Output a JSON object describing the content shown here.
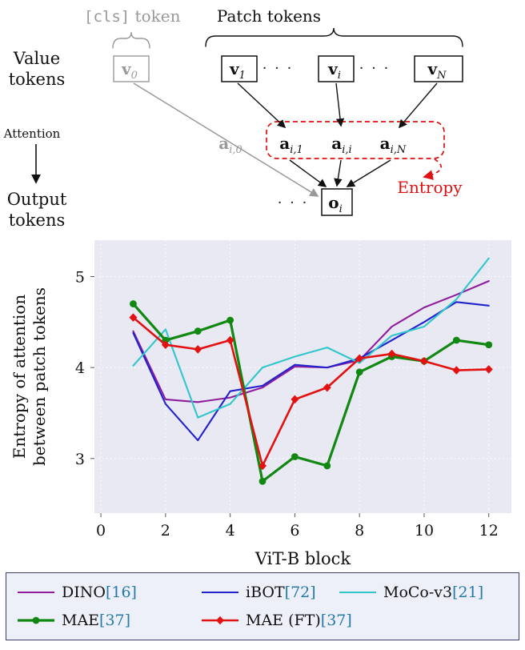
{
  "diagram": {
    "cls_label": {
      "mono": "[cls]",
      "rest": " token"
    },
    "patch_tokens_label": "Patch tokens",
    "value_tokens_lines": [
      "Value",
      "tokens"
    ],
    "attention_label": "Attention",
    "output_tokens_lines": [
      "Output",
      "tokens"
    ],
    "entropy_label": "Entropy",
    "ellipsis": "· · ·",
    "tokens": {
      "v0": {
        "base": "v",
        "sub": "0"
      },
      "v1": {
        "base": "v",
        "sub": "1"
      },
      "vi": {
        "base": "v",
        "sub": "i"
      },
      "vN": {
        "base": "v",
        "sub": "N"
      },
      "ai0": {
        "base": "a",
        "sub": "i,0"
      },
      "ai1": {
        "base": "a",
        "sub": "i,1"
      },
      "aii": {
        "base": "a",
        "sub": "i,i"
      },
      "aiN": {
        "base": "a",
        "sub": "i,N"
      },
      "oi": {
        "base": "o",
        "sub": "i"
      }
    },
    "colors": {
      "gray": "#999999",
      "red": "#dd1111",
      "black": "#111111"
    }
  },
  "chart_data": {
    "type": "line",
    "x": [
      1,
      2,
      3,
      4,
      5,
      6,
      7,
      8,
      9,
      10,
      11,
      12
    ],
    "series": [
      {
        "name": "DINO",
        "cite": "[16]",
        "color": "#8e1d9e",
        "width": 2.1,
        "marker": "none",
        "values": [
          4.4,
          3.65,
          3.62,
          3.67,
          3.78,
          4.01,
          4.0,
          4.08,
          4.45,
          4.66,
          4.8,
          4.95
        ]
      },
      {
        "name": "iBOT",
        "cite": "[72]",
        "color": "#2222cc",
        "width": 2.1,
        "marker": "none",
        "values": [
          4.38,
          3.6,
          3.2,
          3.74,
          3.8,
          4.03,
          4.0,
          4.1,
          4.3,
          4.5,
          4.72,
          4.68
        ]
      },
      {
        "name": "MoCo-v3",
        "cite": "[21]",
        "color": "#2fc6cc",
        "width": 2.1,
        "marker": "none",
        "values": [
          4.02,
          4.42,
          3.45,
          3.6,
          4.0,
          4.12,
          4.22,
          4.05,
          4.35,
          4.45,
          4.75,
          5.2
        ]
      },
      {
        "name": "MAE",
        "cite": "[37]",
        "color": "#118811",
        "width": 3.2,
        "marker": "circle",
        "values": [
          4.7,
          4.3,
          4.4,
          4.52,
          2.75,
          3.02,
          2.92,
          3.95,
          4.12,
          4.07,
          4.3,
          4.25
        ]
      },
      {
        "name": "MAE (FT)",
        "cite": "[37]",
        "color": "#e31212",
        "width": 2.6,
        "marker": "diamond",
        "values": [
          4.55,
          4.25,
          4.2,
          4.3,
          2.92,
          3.65,
          3.78,
          4.1,
          4.15,
          4.07,
          3.97,
          3.98
        ]
      }
    ],
    "title": "",
    "xlabel": "ViT-B block",
    "ylabel_lines": [
      "Entropy of attention",
      "between patch tokens"
    ],
    "xticks": [
      0,
      2,
      4,
      6,
      8,
      10,
      12
    ],
    "yticks": [
      3,
      4,
      5
    ],
    "xlim": [
      -0.2,
      12.7
    ],
    "ylim": [
      2.4,
      5.4
    ],
    "grid": true,
    "background": "#e9e9f3",
    "grid_color": "#ffffff"
  },
  "legend": {
    "rows": [
      [
        0,
        1,
        2
      ],
      [
        3,
        4
      ]
    ],
    "cite_color": "#2679a8"
  }
}
